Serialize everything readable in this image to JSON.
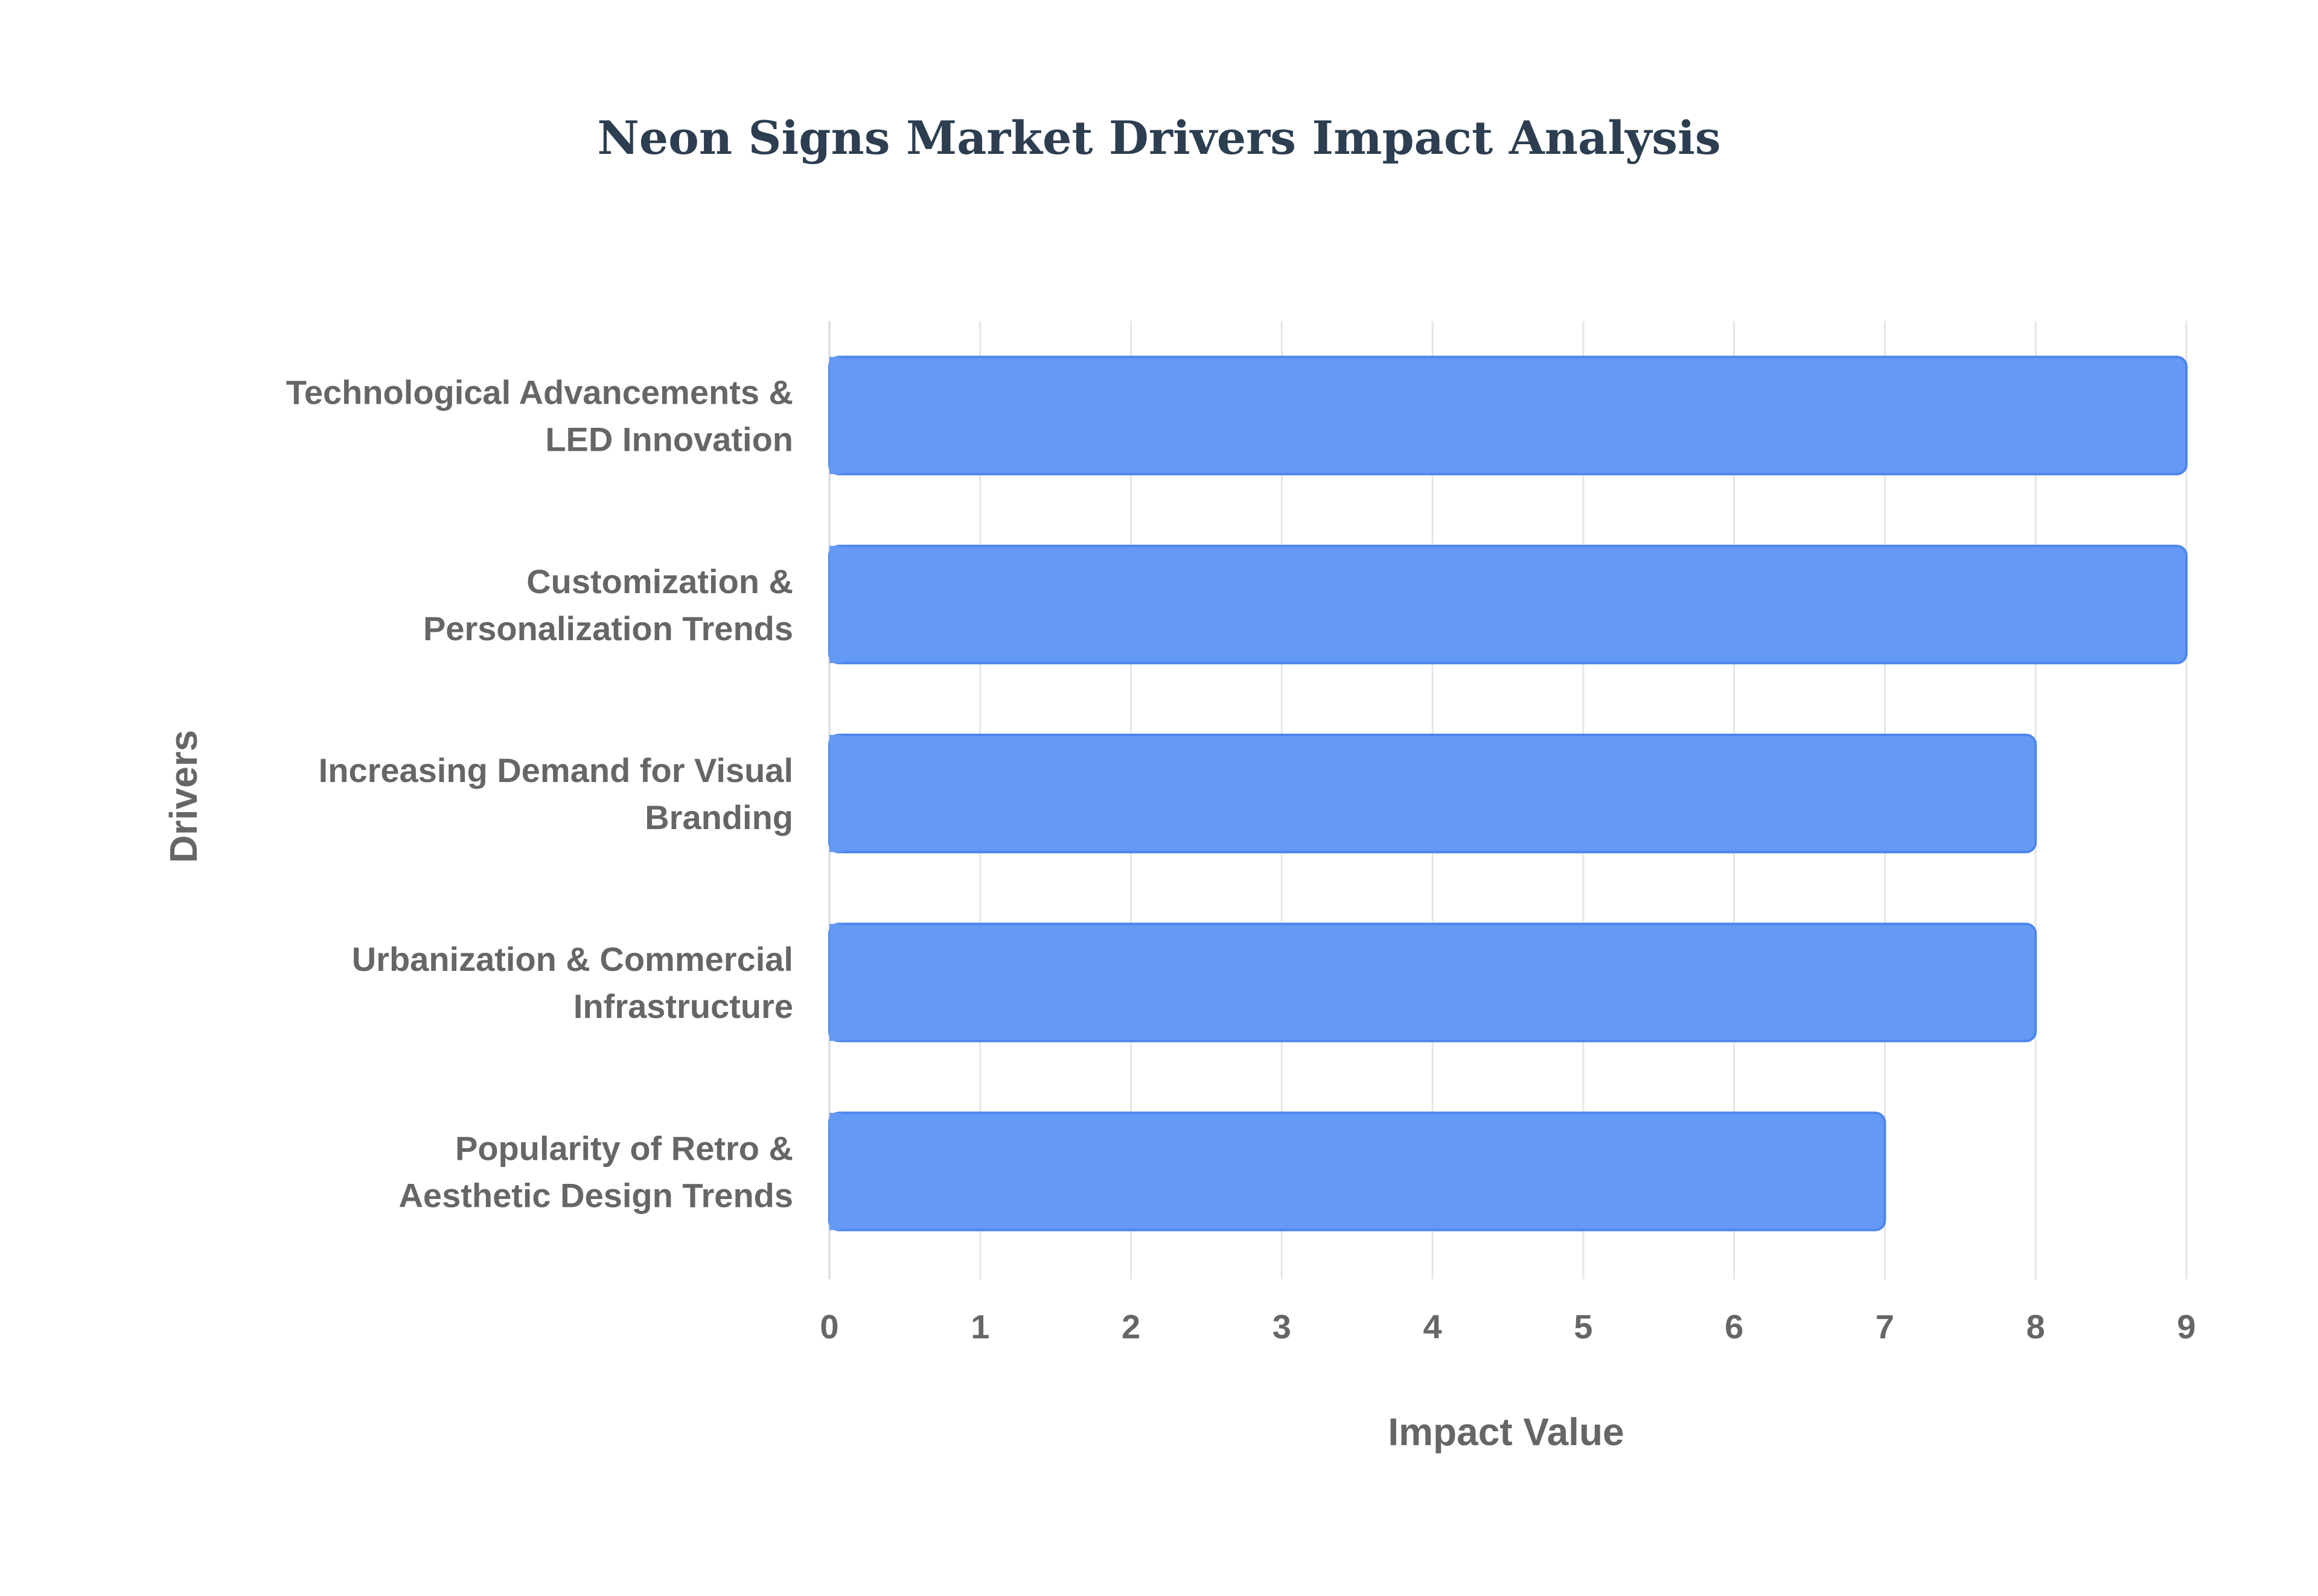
{
  "chart_data": {
    "type": "bar",
    "orientation": "horizontal",
    "title": "Neon Signs Market Drivers Impact Analysis",
    "xlabel": "Impact Value",
    "ylabel": "Drivers",
    "xlim": [
      0,
      9
    ],
    "x_ticks": [
      "0",
      "1",
      "2",
      "3",
      "4",
      "5",
      "6",
      "7",
      "8",
      "9"
    ],
    "grid": true,
    "legend": "none",
    "categories": [
      [
        "Technological Advancements &",
        "LED Innovation"
      ],
      [
        "Customization &",
        "Personalization Trends"
      ],
      [
        "Increasing Demand for Visual",
        "Branding"
      ],
      [
        "Urbanization & Commercial",
        "Infrastructure"
      ],
      [
        "Popularity of Retro &",
        "Aesthetic Design Trends"
      ]
    ],
    "values": [
      9,
      9,
      8,
      8,
      7
    ],
    "bar_color": "#6499f5",
    "bar_border_color": "#4d86ec"
  }
}
